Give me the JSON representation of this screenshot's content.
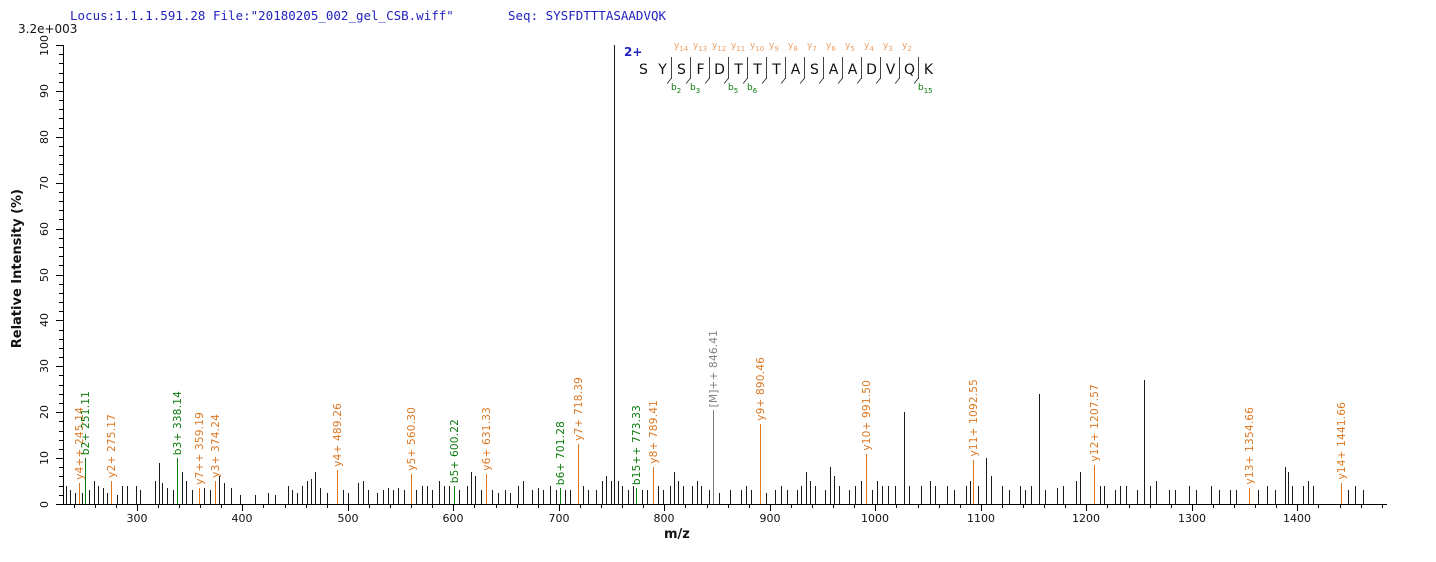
{
  "header": {
    "locus_file": "Locus:1.1.1.591.28 File:\"20180205_002_gel_CSB.wiff\"",
    "seq_label": "Seq: SYSFDTTTASAADVQK",
    "intensity_scale": "3.2e+003"
  },
  "colors": {
    "header_blue": "#2323c0",
    "y_ion": "#dd7722",
    "b_ion": "#0b7a0b",
    "precursor": "#808080",
    "peak": "#1a1a1a",
    "axis": "#000000",
    "annot_y": "#eb9f66",
    "annot_b": "#0b7a0b",
    "bond_mark": "#444444"
  },
  "chart_data": {
    "type": "bar",
    "subtype": "centroided-ms2-spectrum",
    "title": "",
    "xlabel": "m/z",
    "ylabel": "Relative  Intensity (%)",
    "xlim": [
      230,
      1485
    ],
    "ylim": [
      0,
      100
    ],
    "x_major_ticks": [
      300,
      400,
      500,
      600,
      700,
      800,
      900,
      1000,
      1100,
      1200,
      1300,
      1400
    ],
    "x_minor_step": 20,
    "y_major_step": 10,
    "y_minor_step": 2,
    "grid": false,
    "legend": "none",
    "precursor_charge": "2+",
    "sequence": "SYSFDTTTASAADVQK",
    "fragment_marks": {
      "y": [
        {
          "num": 14,
          "bond": 2
        },
        {
          "num": 13,
          "bond": 3
        },
        {
          "num": 12,
          "bond": 4
        },
        {
          "num": 11,
          "bond": 5
        },
        {
          "num": 10,
          "bond": 6
        },
        {
          "num": 9,
          "bond": 7
        },
        {
          "num": 8,
          "bond": 8
        },
        {
          "num": 7,
          "bond": 9
        },
        {
          "num": 6,
          "bond": 10
        },
        {
          "num": 5,
          "bond": 11
        },
        {
          "num": 4,
          "bond": 12
        },
        {
          "num": 3,
          "bond": 13
        },
        {
          "num": 2,
          "bond": 14
        }
      ],
      "b": [
        {
          "num": 2,
          "bond": 2
        },
        {
          "num": 3,
          "bond": 3
        },
        {
          "num": 5,
          "bond": 5
        },
        {
          "num": 6,
          "bond": 6
        },
        {
          "num": 15,
          "bond": 15
        }
      ]
    },
    "labeled_peaks": [
      {
        "label": "y4++ 245.14",
        "mz": 245.14,
        "pct": 4.5,
        "series": "y"
      },
      {
        "label": "b2+ 251.11",
        "mz": 251.11,
        "pct": 10,
        "series": "b"
      },
      {
        "label": "y2+ 275.17",
        "mz": 275.17,
        "pct": 5,
        "series": "y"
      },
      {
        "label": "b3+ 338.14",
        "mz": 338.14,
        "pct": 10,
        "series": "b"
      },
      {
        "label": "y7++ 359.19",
        "mz": 359.19,
        "pct": 3.5,
        "series": "y"
      },
      {
        "label": "y3+ 374.24",
        "mz": 374.24,
        "pct": 5,
        "series": "y"
      },
      {
        "label": "y4+ 489.26",
        "mz": 489.26,
        "pct": 7.5,
        "series": "y"
      },
      {
        "label": "y5+ 560.30",
        "mz": 560.3,
        "pct": 6.5,
        "series": "y"
      },
      {
        "label": "b5+ 600.22",
        "mz": 600.22,
        "pct": 4,
        "series": "b"
      },
      {
        "label": "y6+ 631.33",
        "mz": 631.33,
        "pct": 6.5,
        "series": "y"
      },
      {
        "label": "b6+ 701.28",
        "mz": 701.28,
        "pct": 3.5,
        "series": "b"
      },
      {
        "label": "y7+ 718.39",
        "mz": 718.39,
        "pct": 13,
        "series": "y"
      },
      {
        "label": "b15++ 773.33",
        "mz": 773.33,
        "pct": 3.5,
        "series": "b"
      },
      {
        "label": "y8+ 789.41",
        "mz": 789.41,
        "pct": 8,
        "series": "y"
      },
      {
        "label": "[M]++ 846.41",
        "mz": 846.41,
        "pct": 20.5,
        "series": "precursor"
      },
      {
        "label": "y9+ 890.46",
        "mz": 890.46,
        "pct": 17.5,
        "series": "y"
      },
      {
        "label": "y10+ 991.50",
        "mz": 991.5,
        "pct": 11,
        "series": "y"
      },
      {
        "label": "y11+ 1092.55",
        "mz": 1092.55,
        "pct": 9.5,
        "series": "y"
      },
      {
        "label": "y12+ 1207.57",
        "mz": 1207.57,
        "pct": 8.5,
        "series": "y"
      },
      {
        "label": "y13+ 1354.66",
        "mz": 1354.66,
        "pct": 3.5,
        "series": "y"
      },
      {
        "label": "y14+ 1441.66",
        "mz": 1441.66,
        "pct": 4.5,
        "series": "y"
      }
    ],
    "base_peak": {
      "mz": 752.4,
      "pct": 100
    },
    "unlabeled_peaks": [
      [
        233,
        4
      ],
      [
        237,
        3
      ],
      [
        241,
        2.5
      ],
      [
        248,
        2.5
      ],
      [
        255,
        3
      ],
      [
        259,
        5
      ],
      [
        263,
        4
      ],
      [
        268,
        3.5
      ],
      [
        272,
        2.5
      ],
      [
        281,
        2
      ],
      [
        286,
        4
      ],
      [
        291,
        4
      ],
      [
        299,
        4
      ],
      [
        303,
        3
      ],
      [
        317,
        5
      ],
      [
        321,
        9
      ],
      [
        324,
        4.5
      ],
      [
        329,
        3.5
      ],
      [
        334,
        3
      ],
      [
        343,
        7
      ],
      [
        347,
        5
      ],
      [
        352,
        3
      ],
      [
        364,
        3.5
      ],
      [
        369,
        3
      ],
      [
        378,
        6
      ],
      [
        383,
        4.5
      ],
      [
        389,
        3.5
      ],
      [
        398,
        2
      ],
      [
        412,
        2
      ],
      [
        424,
        2.5
      ],
      [
        431,
        2
      ],
      [
        443,
        4
      ],
      [
        447,
        3
      ],
      [
        452,
        2.5
      ],
      [
        457,
        4
      ],
      [
        461,
        5
      ],
      [
        465,
        5.5
      ],
      [
        469,
        7
      ],
      [
        474,
        3.5
      ],
      [
        480,
        2.5
      ],
      [
        495,
        3
      ],
      [
        500,
        2.5
      ],
      [
        510,
        4.5
      ],
      [
        514,
        5
      ],
      [
        519,
        3
      ],
      [
        528,
        2.5
      ],
      [
        533,
        3
      ],
      [
        538,
        3.5
      ],
      [
        543,
        3
      ],
      [
        548,
        3.5
      ],
      [
        553,
        3
      ],
      [
        565,
        3
      ],
      [
        570,
        4
      ],
      [
        575,
        4
      ],
      [
        580,
        3
      ],
      [
        586,
        5
      ],
      [
        591,
        4
      ],
      [
        596,
        4
      ],
      [
        605,
        3
      ],
      [
        613,
        4
      ],
      [
        617,
        7
      ],
      [
        621,
        6
      ],
      [
        626,
        3
      ],
      [
        637,
        3
      ],
      [
        642,
        2.5
      ],
      [
        649,
        3
      ],
      [
        654,
        2.5
      ],
      [
        661,
        4
      ],
      [
        666,
        5
      ],
      [
        675,
        3
      ],
      [
        680,
        3.5
      ],
      [
        685,
        3
      ],
      [
        692,
        4
      ],
      [
        697,
        3
      ],
      [
        706,
        3
      ],
      [
        711,
        3
      ],
      [
        723,
        4
      ],
      [
        728,
        3
      ],
      [
        735,
        3
      ],
      [
        741,
        5
      ],
      [
        745,
        6
      ],
      [
        749,
        5
      ],
      [
        752.4,
        100
      ],
      [
        756,
        5
      ],
      [
        760,
        4
      ],
      [
        766,
        3
      ],
      [
        770,
        4
      ],
      [
        779,
        3
      ],
      [
        784,
        3
      ],
      [
        794,
        4
      ],
      [
        799,
        3
      ],
      [
        805,
        4
      ],
      [
        809,
        7
      ],
      [
        813,
        5
      ],
      [
        818,
        4
      ],
      [
        826,
        4
      ],
      [
        831,
        5
      ],
      [
        835,
        4
      ],
      [
        842,
        3
      ],
      [
        852,
        2.5
      ],
      [
        862,
        3
      ],
      [
        873,
        3
      ],
      [
        877,
        4
      ],
      [
        882,
        3
      ],
      [
        896,
        2.5
      ],
      [
        905,
        3
      ],
      [
        911,
        4
      ],
      [
        916,
        3
      ],
      [
        926,
        3
      ],
      [
        930,
        4
      ],
      [
        934,
        7
      ],
      [
        938,
        5
      ],
      [
        943,
        4
      ],
      [
        952,
        3
      ],
      [
        957,
        8
      ],
      [
        961,
        6
      ],
      [
        966,
        4
      ],
      [
        975,
        3
      ],
      [
        981,
        4
      ],
      [
        986,
        5
      ],
      [
        997,
        3
      ],
      [
        1002,
        5
      ],
      [
        1006,
        4
      ],
      [
        1012,
        4
      ],
      [
        1019,
        4
      ],
      [
        1027,
        20
      ],
      [
        1032,
        4
      ],
      [
        1043,
        4
      ],
      [
        1052,
        5
      ],
      [
        1057,
        4
      ],
      [
        1068,
        4
      ],
      [
        1075,
        3
      ],
      [
        1086,
        4
      ],
      [
        1090,
        5
      ],
      [
        1097,
        4
      ],
      [
        1105,
        10
      ],
      [
        1110,
        6
      ],
      [
        1120,
        4
      ],
      [
        1127,
        3
      ],
      [
        1137,
        4
      ],
      [
        1142,
        3
      ],
      [
        1148,
        4
      ],
      [
        1155,
        24
      ],
      [
        1161,
        3
      ],
      [
        1172,
        3.5
      ],
      [
        1178,
        4
      ],
      [
        1190,
        5
      ],
      [
        1194,
        7
      ],
      [
        1213,
        4
      ],
      [
        1217,
        4
      ],
      [
        1227,
        3
      ],
      [
        1232,
        4
      ],
      [
        1238,
        4
      ],
      [
        1248,
        3
      ],
      [
        1255,
        27
      ],
      [
        1260,
        4
      ],
      [
        1266,
        5
      ],
      [
        1278,
        3
      ],
      [
        1284,
        3
      ],
      [
        1297,
        4
      ],
      [
        1304,
        3
      ],
      [
        1318,
        4
      ],
      [
        1326,
        3
      ],
      [
        1336,
        3
      ],
      [
        1342,
        3
      ],
      [
        1363,
        3
      ],
      [
        1371,
        4
      ],
      [
        1379,
        3
      ],
      [
        1388,
        8
      ],
      [
        1391,
        7
      ],
      [
        1395,
        4
      ],
      [
        1405,
        4
      ],
      [
        1410,
        5
      ],
      [
        1415,
        4
      ],
      [
        1448,
        3
      ],
      [
        1455,
        4
      ],
      [
        1462,
        3
      ]
    ]
  }
}
